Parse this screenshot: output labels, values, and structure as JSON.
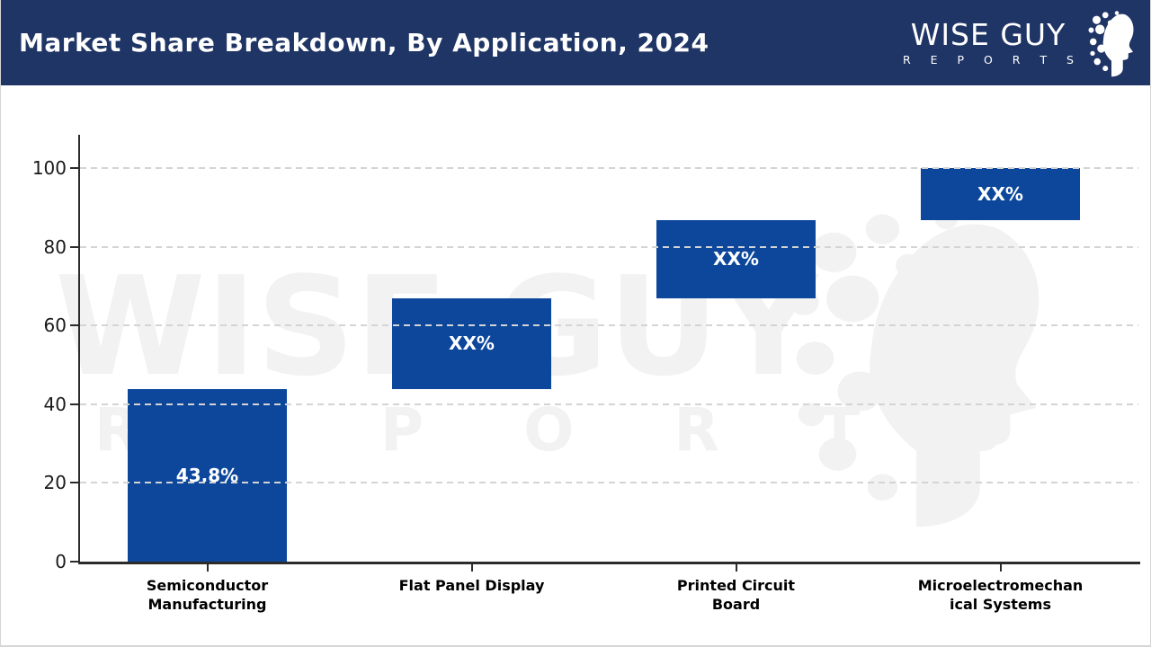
{
  "header": {
    "title": "Market Share Breakdown, By Application, 2024",
    "logo": {
      "line1": "WISE GUY",
      "line2": "R E P O R T S"
    }
  },
  "watermark": {
    "line1": "WISE GUY",
    "line2": "R E P O R T S"
  },
  "chart_data": {
    "type": "bar",
    "subtype": "waterfall",
    "title": "Market Share Breakdown, By Application, 2024",
    "categories": [
      "Semiconductor Manufacturing",
      "Flat Panel Display",
      "Printed Circuit Board",
      "Microelectromechanical Systems"
    ],
    "segments": [
      {
        "label": "Semiconductor Manufacturing",
        "tick_lines": [
          "Semiconductor",
          "Manufacturing"
        ],
        "start": 0,
        "end": 43.8,
        "value_label": "43.8%"
      },
      {
        "label": "Flat Panel Display",
        "tick_lines": [
          "Flat Panel Display"
        ],
        "start": 43.8,
        "end": 67,
        "value_label": "XX%"
      },
      {
        "label": "Printed Circuit Board",
        "tick_lines": [
          "Printed Circuit",
          "Board"
        ],
        "start": 67,
        "end": 86.8,
        "value_label": "XX%"
      },
      {
        "label": "Microelectromechanical Systems",
        "tick_lines": [
          "Microelectromechan",
          "ical Systems"
        ],
        "start": 86.8,
        "end": 100,
        "value_label": "XX%"
      }
    ],
    "y_ticks": [
      0,
      20,
      40,
      60,
      80,
      100
    ],
    "ylim": [
      0,
      108
    ],
    "grid": "horizontal-dashed",
    "grid_on_top_of_bars": true,
    "legend": null,
    "xlabel": "",
    "ylabel": ""
  },
  "colors": {
    "header_bg": "#1f3565",
    "header_text": "#ffffff",
    "bar": "#0c479c",
    "bar_label_text": "#ffffff",
    "watermark": "#f2f2f2",
    "grid": "#d4d4d4",
    "axis": "#2b2b2b",
    "tick_label": "#1a1a1a"
  }
}
